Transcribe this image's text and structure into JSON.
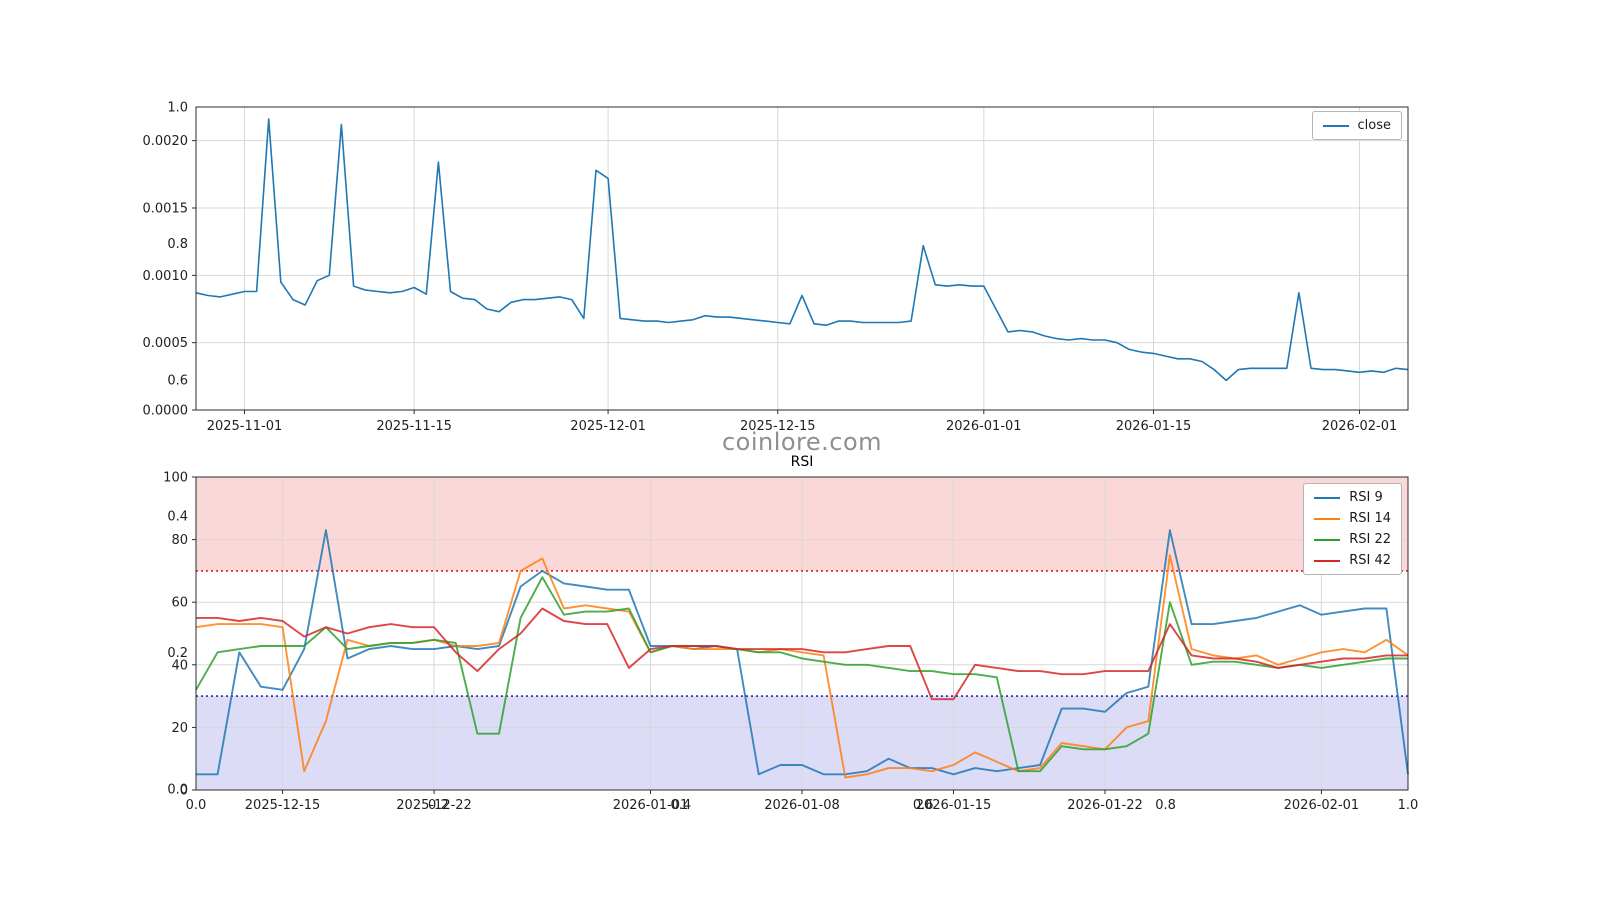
{
  "watermark": "coinlore.com",
  "figure": {
    "twin_y_labels": [
      "1.0",
      "0.8",
      "0.6",
      "0.4",
      "0.2",
      "0.0"
    ]
  },
  "chart_data": [
    {
      "type": "line",
      "title": "",
      "xlabel": "",
      "ylabel": "",
      "ylim": [
        0,
        0.00225
      ],
      "grid": true,
      "legend_position": "upper right",
      "y_ticks": [
        {
          "v": 0.0,
          "label": "0.0000"
        },
        {
          "v": 0.0005,
          "label": "0.0005"
        },
        {
          "v": 0.001,
          "label": "0.0010"
        },
        {
          "v": 0.0015,
          "label": "0.0015"
        },
        {
          "v": 0.002,
          "label": "0.0020"
        }
      ],
      "x_ticks": [
        {
          "pos": 4,
          "label": "2025-11-01"
        },
        {
          "pos": 18,
          "label": "2025-11-15"
        },
        {
          "pos": 34,
          "label": "2025-12-01"
        },
        {
          "pos": 48,
          "label": "2025-12-15"
        },
        {
          "pos": 65,
          "label": "2026-01-01"
        },
        {
          "pos": 79,
          "label": "2026-01-15"
        },
        {
          "pos": 96,
          "label": "2026-02-01"
        }
      ],
      "series": [
        {
          "name": "close",
          "color": "#1f77b4",
          "values": [
            0.00087,
            0.00085,
            0.00084,
            0.00086,
            0.00088,
            0.00088,
            0.00216,
            0.00095,
            0.00082,
            0.00078,
            0.00096,
            0.001,
            0.00212,
            0.00092,
            0.00089,
            0.00088,
            0.00087,
            0.00088,
            0.00091,
            0.00086,
            0.00184,
            0.00088,
            0.00083,
            0.00082,
            0.00075,
            0.00073,
            0.0008,
            0.00082,
            0.00082,
            0.00083,
            0.00084,
            0.00082,
            0.00068,
            0.00178,
            0.00172,
            0.00068,
            0.00067,
            0.00066,
            0.00066,
            0.00065,
            0.00066,
            0.00067,
            0.0007,
            0.00069,
            0.00069,
            0.00068,
            0.00067,
            0.00066,
            0.00065,
            0.00064,
            0.00085,
            0.00064,
            0.00063,
            0.00066,
            0.00066,
            0.00065,
            0.00065,
            0.00065,
            0.00065,
            0.00066,
            0.00122,
            0.00093,
            0.00092,
            0.00093,
            0.00092,
            0.00092,
            0.00075,
            0.00058,
            0.00059,
            0.00058,
            0.00055,
            0.00053,
            0.00052,
            0.00053,
            0.00052,
            0.00052,
            0.0005,
            0.00045,
            0.00043,
            0.00042,
            0.0004,
            0.00038,
            0.00038,
            0.00036,
            0.0003,
            0.00022,
            0.0003,
            0.00031,
            0.00031,
            0.00031,
            0.00031,
            0.00087,
            0.00031,
            0.0003,
            0.0003,
            0.00029,
            0.00028,
            0.00029,
            0.00028,
            0.00031,
            0.0003
          ]
        }
      ]
    },
    {
      "type": "line",
      "title": "RSI",
      "xlabel": "",
      "ylabel": "",
      "ylim": [
        0,
        100
      ],
      "grid": true,
      "legend_position": "upper right",
      "overbought": {
        "level": 70,
        "line_color": "#cc0000",
        "band_color": "#fbd8d8"
      },
      "oversold": {
        "level": 30,
        "line_color": "#0000a0",
        "band_color": "#dcdcf7"
      },
      "y_ticks": [
        {
          "v": 0,
          "label": "0"
        },
        {
          "v": 20,
          "label": "20"
        },
        {
          "v": 40,
          "label": "40"
        },
        {
          "v": 60,
          "label": "60"
        },
        {
          "v": 80,
          "label": "80"
        },
        {
          "v": 100,
          "label": "100"
        }
      ],
      "x_ticks": [
        {
          "pos": 4,
          "label": "2025-12-15"
        },
        {
          "pos": 11,
          "label": "2025-12-22"
        },
        {
          "pos": 21,
          "label": "2026-01-01"
        },
        {
          "pos": 28,
          "label": "2026-01-08"
        },
        {
          "pos": 35,
          "label": "2026-01-15"
        },
        {
          "pos": 42,
          "label": "2026-01-22"
        },
        {
          "pos": 52,
          "label": "2026-02-01"
        }
      ],
      "twin_x_labels": [
        "0.0",
        "0.2",
        "0.4",
        "0.6",
        "0.8",
        "1.0"
      ],
      "series": [
        {
          "name": "RSI 9",
          "color": "#1f77b4",
          "values": [
            5,
            5,
            44,
            33,
            32,
            45,
            83,
            42,
            45,
            46,
            45,
            45,
            46,
            45,
            46,
            65,
            70,
            66,
            65,
            64,
            64,
            46,
            46,
            45,
            46,
            45,
            5,
            8,
            8,
            5,
            5,
            6,
            10,
            7,
            7,
            5,
            7,
            6,
            7,
            8,
            26,
            26,
            25,
            31,
            33,
            83,
            53,
            53,
            54,
            55,
            57,
            59,
            56,
            57,
            58,
            58,
            5
          ]
        },
        {
          "name": "RSI 14",
          "color": "#ff7f0e",
          "values": [
            52,
            53,
            53,
            53,
            52,
            6,
            22,
            48,
            46,
            47,
            47,
            48,
            46,
            46,
            47,
            70,
            74,
            58,
            59,
            58,
            57,
            44,
            46,
            45,
            45,
            45,
            44,
            45,
            44,
            43,
            4,
            5,
            7,
            7,
            6,
            8,
            12,
            9,
            6,
            7,
            15,
            14,
            13,
            20,
            22,
            75,
            45,
            43,
            42,
            43,
            40,
            42,
            44,
            45,
            44,
            48,
            43
          ]
        },
        {
          "name": "RSI 22",
          "color": "#2ca02c",
          "values": [
            32,
            44,
            45,
            46,
            46,
            46,
            52,
            45,
            46,
            47,
            47,
            48,
            47,
            18,
            18,
            55,
            68,
            56,
            57,
            57,
            58,
            44,
            46,
            46,
            46,
            45,
            44,
            44,
            42,
            41,
            40,
            40,
            39,
            38,
            38,
            37,
            37,
            36,
            6,
            6,
            14,
            13,
            13,
            14,
            18,
            60,
            40,
            41,
            41,
            40,
            39,
            40,
            39,
            40,
            41,
            42,
            42
          ]
        },
        {
          "name": "RSI 42",
          "color": "#d62728",
          "values": [
            55,
            55,
            54,
            55,
            54,
            49,
            52,
            50,
            52,
            53,
            52,
            52,
            44,
            38,
            45,
            50,
            58,
            54,
            53,
            53,
            39,
            45,
            46,
            46,
            46,
            45,
            45,
            45,
            45,
            44,
            44,
            45,
            46,
            46,
            29,
            29,
            40,
            39,
            38,
            38,
            37,
            37,
            38,
            38,
            38,
            53,
            43,
            42,
            42,
            41,
            39,
            40,
            41,
            42,
            42,
            43,
            43
          ]
        }
      ]
    }
  ]
}
